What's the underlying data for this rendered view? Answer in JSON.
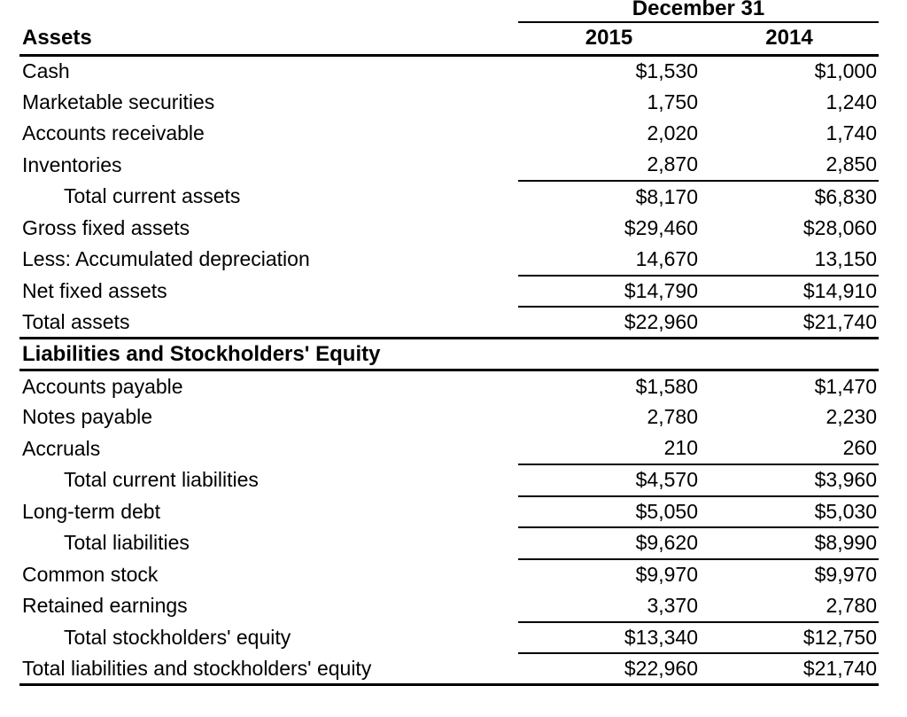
{
  "header": {
    "date_header": "December 31",
    "col_2015": "2015",
    "col_2014": "2014",
    "assets_section": "Assets",
    "liabilities_section": "Liabilities and Stockholders' Equity"
  },
  "rows": {
    "cash": {
      "label": "Cash",
      "y2015": "$1,530",
      "y2014": "$1,000"
    },
    "marketable_securities": {
      "label": "Marketable securities",
      "y2015": "1,750",
      "y2014": "1,240"
    },
    "accounts_receivable": {
      "label": "Accounts receivable",
      "y2015": "2,020",
      "y2014": "1,740"
    },
    "inventories": {
      "label": "Inventories",
      "y2015": "2,870",
      "y2014": "2,850"
    },
    "total_current_assets": {
      "label": "Total current assets",
      "y2015": "$8,170",
      "y2014": "$6,830"
    },
    "gross_fixed_assets": {
      "label": "Gross fixed assets",
      "y2015": "$29,460",
      "y2014": "$28,060"
    },
    "less_accumulated_depreciation": {
      "label": "Less: Accumulated depreciation",
      "y2015": "14,670",
      "y2014": "13,150"
    },
    "net_fixed_assets": {
      "label": "Net fixed assets",
      "y2015": "$14,790",
      "y2014": "$14,910"
    },
    "total_assets": {
      "label": "Total assets",
      "y2015": "$22,960",
      "y2014": "$21,740"
    },
    "accounts_payable": {
      "label": "Accounts payable",
      "y2015": "$1,580",
      "y2014": "$1,470"
    },
    "notes_payable": {
      "label": "Notes payable",
      "y2015": "2,780",
      "y2014": "2,230"
    },
    "accruals": {
      "label": "Accruals",
      "y2015": "210",
      "y2014": "260"
    },
    "total_current_liabilities": {
      "label": "Total current liabilities",
      "y2015": "$4,570",
      "y2014": "$3,960"
    },
    "long_term_debt": {
      "label": "Long-term debt",
      "y2015": "$5,050",
      "y2014": "$5,030"
    },
    "total_liabilities": {
      "label": "Total liabilities",
      "y2015": "$9,620",
      "y2014": "$8,990"
    },
    "common_stock": {
      "label": "Common stock",
      "y2015": "$9,970",
      "y2014": "$9,970"
    },
    "retained_earnings": {
      "label": "Retained earnings",
      "y2015": "3,370",
      "y2014": "2,780"
    },
    "total_stockholders_equity": {
      "label": "Total stockholders' equity",
      "y2015": "$13,340",
      "y2014": "$12,750"
    },
    "total_liabilities_and_equity": {
      "label": "Total liabilities and stockholders' equity",
      "y2015": "$22,960",
      "y2014": "$21,740"
    }
  },
  "colors": {
    "text": "#000000",
    "background": "#ffffff",
    "rule": "#000000"
  }
}
